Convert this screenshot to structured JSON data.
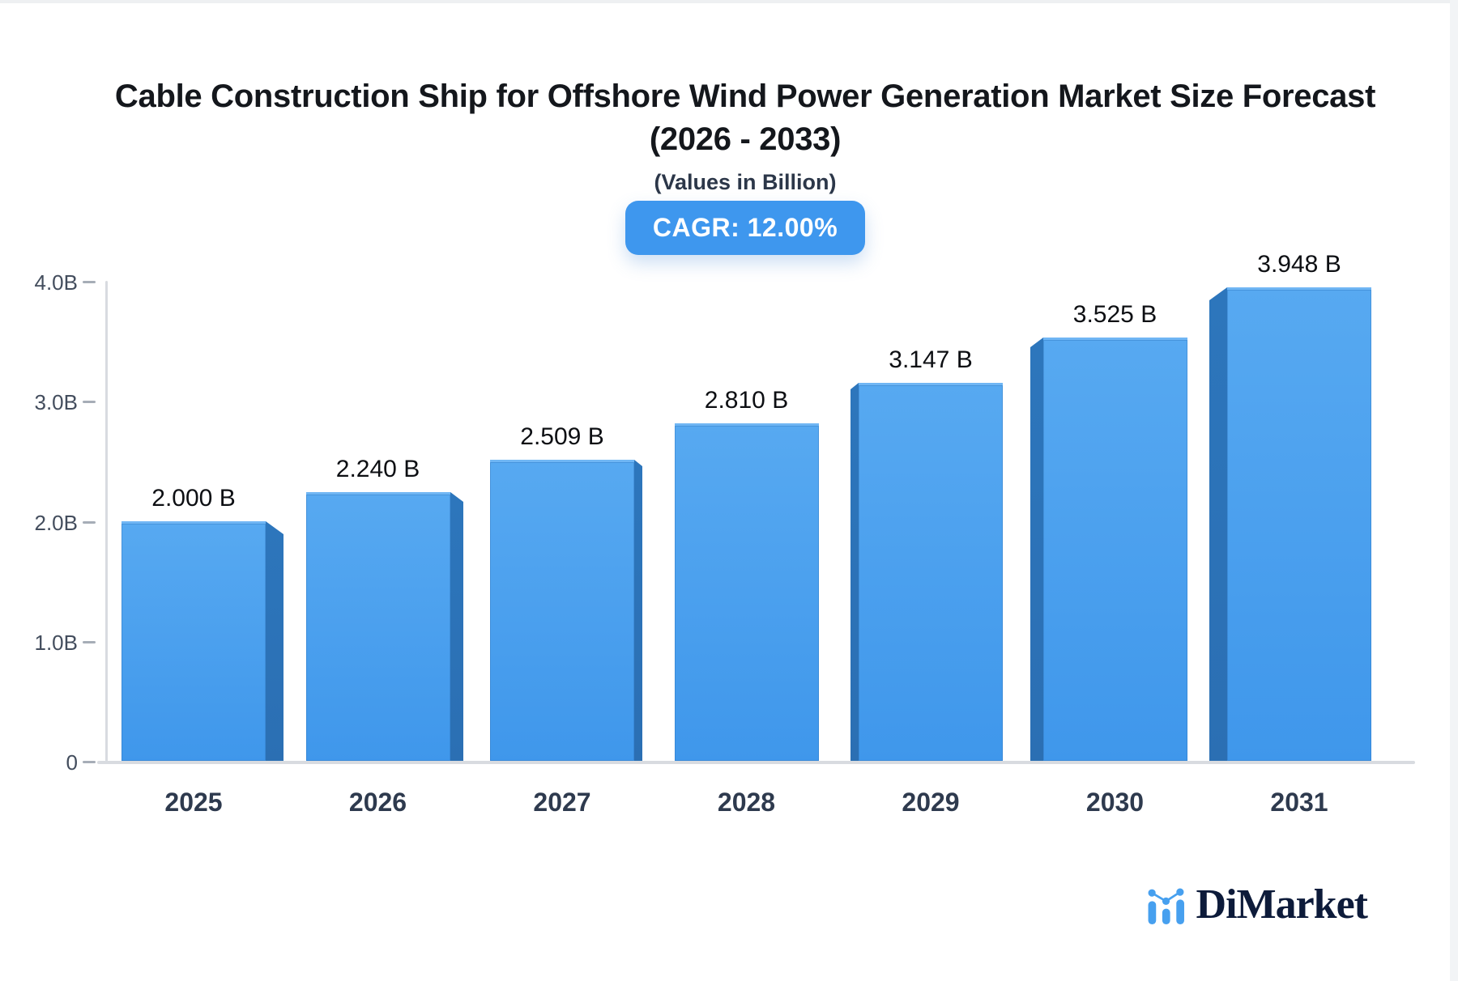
{
  "header": {
    "title_line1": "Cable Construction Ship for Offshore Wind Power Generation Market Size Forecast",
    "title_line2": "(2026 - 2033)",
    "subtitle": "(Values in Billion)",
    "cagr_label": "CAGR: 12.00%"
  },
  "chart_data": {
    "type": "bar",
    "title": "Cable Construction Ship for Offshore Wind Power Generation Market Size Forecast (2026 - 2033)",
    "subtitle": "(Values in Billion)",
    "cagr": "12.00%",
    "categories": [
      "2025",
      "2026",
      "2027",
      "2028",
      "2029",
      "2030",
      "2031"
    ],
    "values": [
      2.0,
      2.24,
      2.509,
      2.81,
      3.147,
      3.525,
      3.948
    ],
    "value_labels": [
      "2.000 B",
      "2.240 B",
      "2.509 B",
      "2.810 B",
      "3.147 B",
      "3.525 B",
      "3.948 B"
    ],
    "xlabel": "",
    "ylabel": "",
    "ylim": [
      0,
      4
    ],
    "ytick_values": [
      0,
      1,
      2,
      3,
      4
    ],
    "ytick_labels": [
      "0",
      "1.0B",
      "2.0B",
      "3.0B",
      "4.0B"
    ],
    "grid": false,
    "legend": false
  },
  "footer": {
    "logo_text": "DiMarket"
  },
  "colors": {
    "bar_face_top": "#57a9f1",
    "bar_face_bottom": "#3f97eb",
    "bar_side_top": "#2d76bc",
    "bar_side_bottom": "#2b6fb3",
    "badge_bg": "#3e97ee",
    "axis_line": "#d8dbe0",
    "tick_dash": "#a6adb7",
    "logo_blue": "#47a0ef",
    "logo_text": "#0d1b3a"
  }
}
